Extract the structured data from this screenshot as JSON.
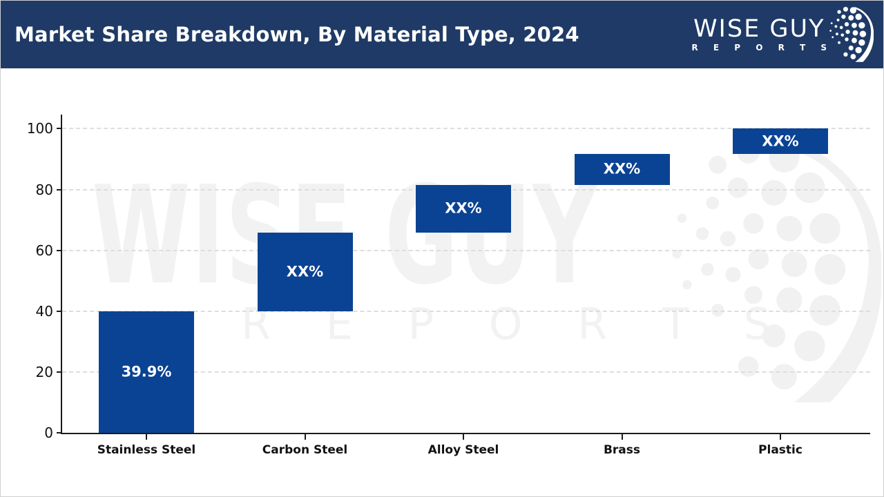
{
  "header": {
    "title": "Market Share Breakdown, By Material Type, 2024",
    "logo": {
      "line1": "WISE GUY",
      "line2": "R E P O R T S",
      "icon": "dotted-head-profile-icon"
    }
  },
  "watermark": {
    "line1": "WISE GUY",
    "line2": "R E P O R T S",
    "icon": "dotted-head-profile-icon"
  },
  "chart_data": {
    "type": "bar",
    "subtype": "waterfall",
    "title": "Market Share Breakdown, By Material Type, 2024",
    "categories": [
      "Stainless Steel",
      "Carbon Steel",
      "Alloy Steel",
      "Brass",
      "Plastic"
    ],
    "series": [
      {
        "name": "Market share (%)",
        "segments": [
          {
            "category": "Stainless Steel",
            "start": 0,
            "end": 39.9,
            "label": "39.9%"
          },
          {
            "category": "Carbon Steel",
            "start": 39.9,
            "end": 65.8,
            "label": "XX%"
          },
          {
            "category": "Alloy Steel",
            "start": 65.8,
            "end": 81.5,
            "label": "XX%"
          },
          {
            "category": "Brass",
            "start": 81.5,
            "end": 91.7,
            "label": "XX%"
          },
          {
            "category": "Plastic",
            "start": 91.7,
            "end": 100,
            "label": "XX%"
          }
        ]
      }
    ],
    "xlabel": "",
    "ylabel": "",
    "ylim": [
      0,
      100
    ],
    "yticks": [
      0,
      20,
      40,
      60,
      80,
      100
    ],
    "grid": "horizontal-dashed",
    "legend": "none",
    "colors": {
      "bar": "#0B4394",
      "bar_label": "#FFFFFF",
      "grid": "#DDDDDD",
      "axis": "#1A1A1A",
      "tick_label": "#111111",
      "header_bg": "#1F3A66",
      "header_text": "#FFFFFF",
      "watermark": "#F2F2F2",
      "page_border": "#CFCFCF"
    }
  }
}
